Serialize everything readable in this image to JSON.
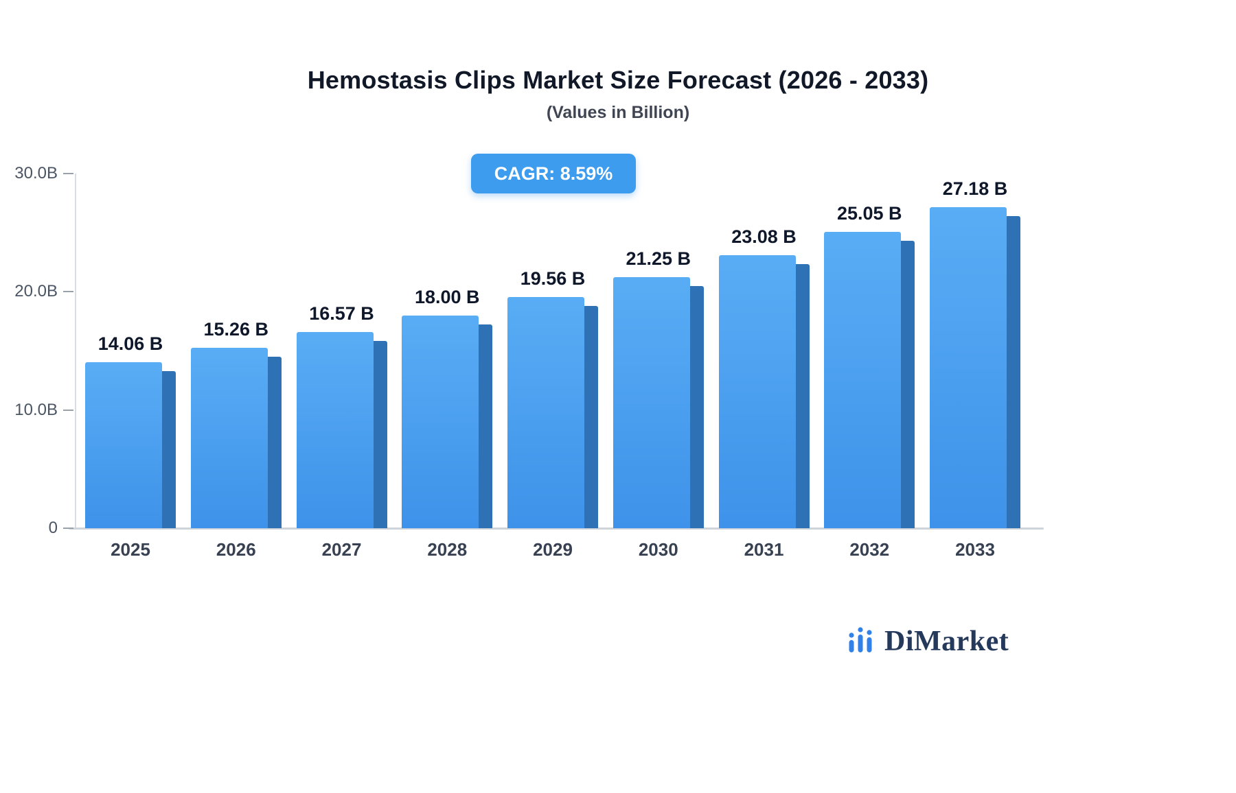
{
  "chart_data": {
    "type": "bar",
    "title": "Hemostasis Clips Market Size Forecast (2026 - 2033)",
    "subtitle": "(Values in Billion)",
    "cagr_badge": "CAGR: 8.59%",
    "categories": [
      "2025",
      "2026",
      "2027",
      "2028",
      "2029",
      "2030",
      "2031",
      "2032",
      "2033"
    ],
    "values": [
      14.06,
      15.26,
      16.57,
      18.0,
      19.56,
      21.25,
      23.08,
      25.05,
      27.18
    ],
    "value_labels": [
      "14.06 B",
      "15.26 B",
      "16.57 B",
      "18.00 B",
      "19.56 B",
      "21.25 B",
      "23.08 B",
      "25.05 B",
      "27.18 B"
    ],
    "xlabel": "",
    "ylabel": "",
    "ylim": [
      0,
      30
    ],
    "yticks": [
      {
        "value": 0,
        "label": "0"
      },
      {
        "value": 10,
        "label": "10.0B"
      },
      {
        "value": 20,
        "label": "20.0B"
      },
      {
        "value": 30,
        "label": "30.0B"
      }
    ],
    "grid": false,
    "legend": "none",
    "colors": {
      "bar_top": "#59ADF5",
      "bar_bottom": "#3E92E9",
      "bar_side": "#2E71B5",
      "accent": "#3E9CEF",
      "axis_line": "#CFD4DA"
    }
  },
  "footer": {
    "brand": "DiMarket",
    "logo_icon": "bar-chart-with-dots-icon",
    "logo_color": "#3181E8"
  }
}
